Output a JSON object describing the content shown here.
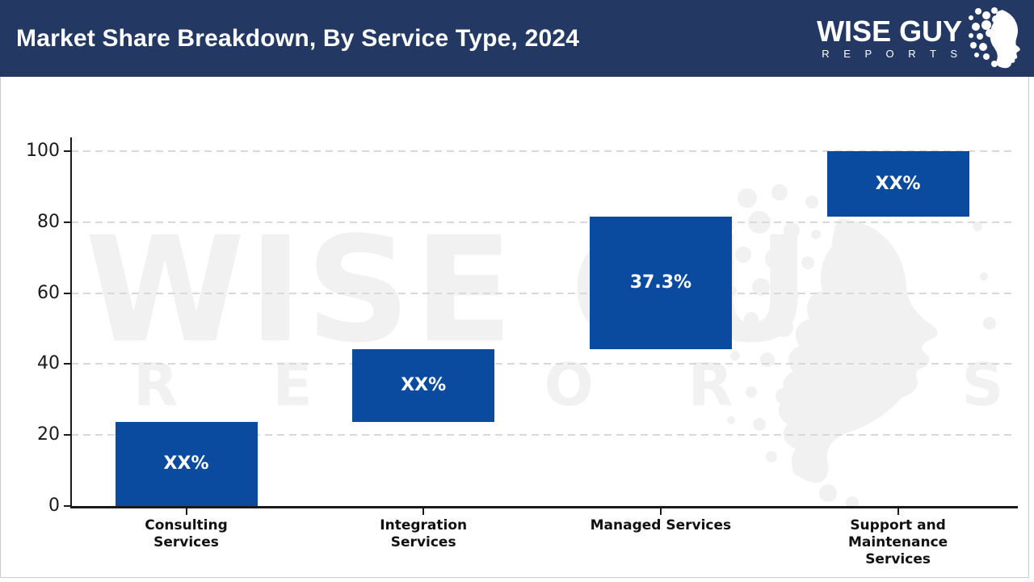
{
  "header": {
    "title": "Market Share Breakdown, By Service Type, 2024",
    "logo": {
      "wordmark": "WISE GUY",
      "subtext": "R E P O R T S"
    }
  },
  "watermark": {
    "wordmark": "WISE GU",
    "subtext": "R E P O R T S"
  },
  "chart_data": {
    "type": "bar",
    "variant": "waterfall",
    "title": "Market Share Breakdown, By Service Type, 2024",
    "categories": [
      "Consulting Services",
      "Integration Services",
      "Managed Services",
      "Support and Maintenance Services"
    ],
    "category_label_lines": [
      [
        "Consulting",
        "Services"
      ],
      [
        "Integration",
        "Services"
      ],
      [
        "Managed Services"
      ],
      [
        "Support and",
        "Maintenance",
        "Services"
      ]
    ],
    "series": [
      {
        "name": "Market share (%)",
        "segments": [
          {
            "category": "Consulting Services",
            "start": 0,
            "end": 23.8,
            "label": "XX%"
          },
          {
            "category": "Integration Services",
            "start": 23.8,
            "end": 44.3,
            "label": "XX%"
          },
          {
            "category": "Managed Services",
            "start": 44.3,
            "end": 81.6,
            "label": "37.3%"
          },
          {
            "category": "Support and Maintenance Services",
            "start": 81.6,
            "end": 100,
            "label": "XX%"
          }
        ]
      }
    ],
    "xlabel": "",
    "ylabel": "",
    "ylim": [
      0,
      100
    ],
    "yticks": [
      0,
      20,
      40,
      60,
      80,
      100
    ],
    "grid": "horizontal-dashed",
    "legend": "none",
    "bar_color": "#0a4a9f",
    "bar_label_color": "#ffffff"
  },
  "colors": {
    "header_bg": "#233963",
    "bar": "#0a4a9f",
    "gridline": "#d9d9d9",
    "axis": "#1a1a1a",
    "watermark": "#f1f1f1",
    "figure_border": "#cccccc"
  }
}
